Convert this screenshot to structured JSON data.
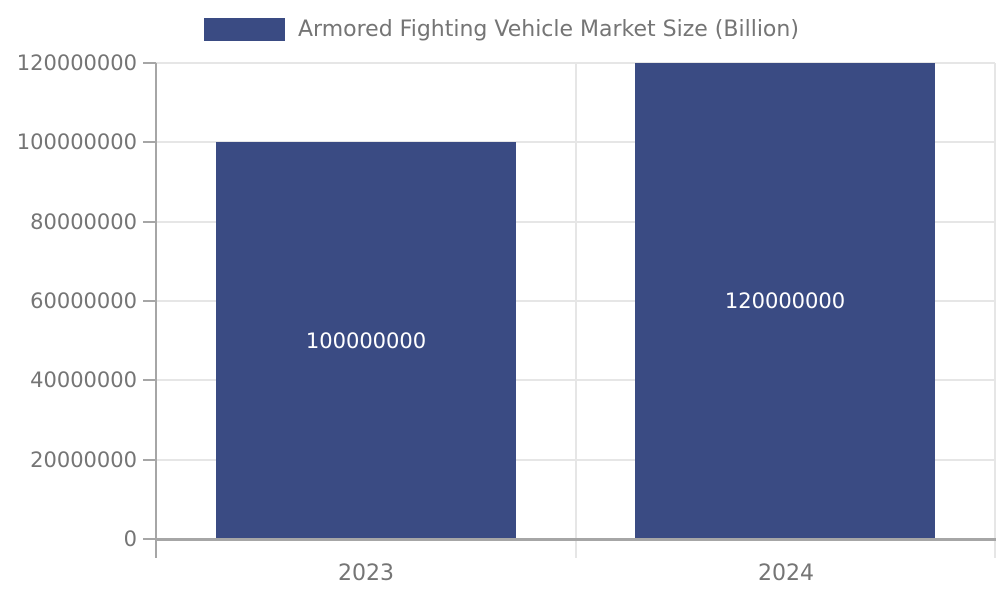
{
  "chart_data": {
    "type": "bar",
    "title": "Armored Fighting Vehicle Market Size (Billion)",
    "legend": [
      "Armored Fighting Vehicle Market Size (Billion)"
    ],
    "legend_position": "top",
    "categories": [
      "2023",
      "2024"
    ],
    "series": [
      {
        "name": "Armored Fighting Vehicle Market Size (Billion)",
        "values": [
          100000000,
          120000000
        ],
        "value_labels": [
          "100000000",
          "120000000"
        ]
      }
    ],
    "xlabel": "",
    "ylabel": "",
    "ylim": [
      0,
      120000000
    ],
    "ytick_values": [
      0,
      20000000,
      40000000,
      60000000,
      80000000,
      100000000,
      120000000
    ],
    "ytick_labels": [
      "0",
      "20000000",
      "40000000",
      "60000000",
      "80000000",
      "100000000",
      "120000000"
    ],
    "grid": true,
    "colors": {
      "bar": "#3a4b83",
      "gridline": "#e6e6e6",
      "axis": "#a6a6a6",
      "tick_text": "#757575",
      "value_label_text": "#ffffff",
      "background": "#ffffff"
    }
  }
}
